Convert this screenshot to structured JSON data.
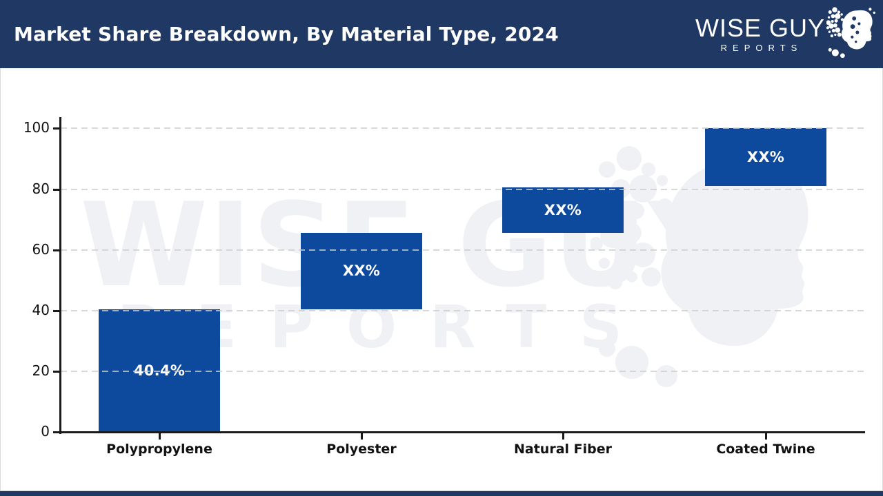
{
  "header": {
    "title": "Market Share Breakdown, By Material Type, 2024",
    "logo": {
      "name": "WISE GUY",
      "subname": "REPORTS"
    }
  },
  "watermark": {
    "line1": "WISE GUY",
    "line2": "REPORTS"
  },
  "chart_data": {
    "type": "bar",
    "subtype": "waterfall",
    "title": "Market Share Breakdown, By Material Type, 2024",
    "categories": [
      "Polypropylene",
      "Polyester",
      "Natural Fiber",
      "Coated Twine"
    ],
    "segments": [
      {
        "category": "Polypropylene",
        "start": 0,
        "end": 40.4,
        "label": "40.4%"
      },
      {
        "category": "Polyester",
        "start": 40.4,
        "end": 65.7,
        "label": "XX%"
      },
      {
        "category": "Natural Fiber",
        "start": 65.7,
        "end": 80.5,
        "label": "XX%"
      },
      {
        "category": "Coated Twine",
        "start": 81,
        "end": 100,
        "label": "XX%"
      }
    ],
    "yticks": [
      0,
      20,
      40,
      60,
      80,
      100
    ],
    "ylim": [
      0,
      104
    ],
    "xlabel": "",
    "ylabel": "",
    "grid": "horizontal-dashed",
    "legend": "none",
    "bar_color": "#0d4a9d",
    "bar_label_color": "#ffffff"
  },
  "colors": {
    "header_bg": "#1f3864",
    "footer_bg": "#1f3864",
    "axis": "#1a1a1a",
    "watermark": "#f0f1f4"
  }
}
